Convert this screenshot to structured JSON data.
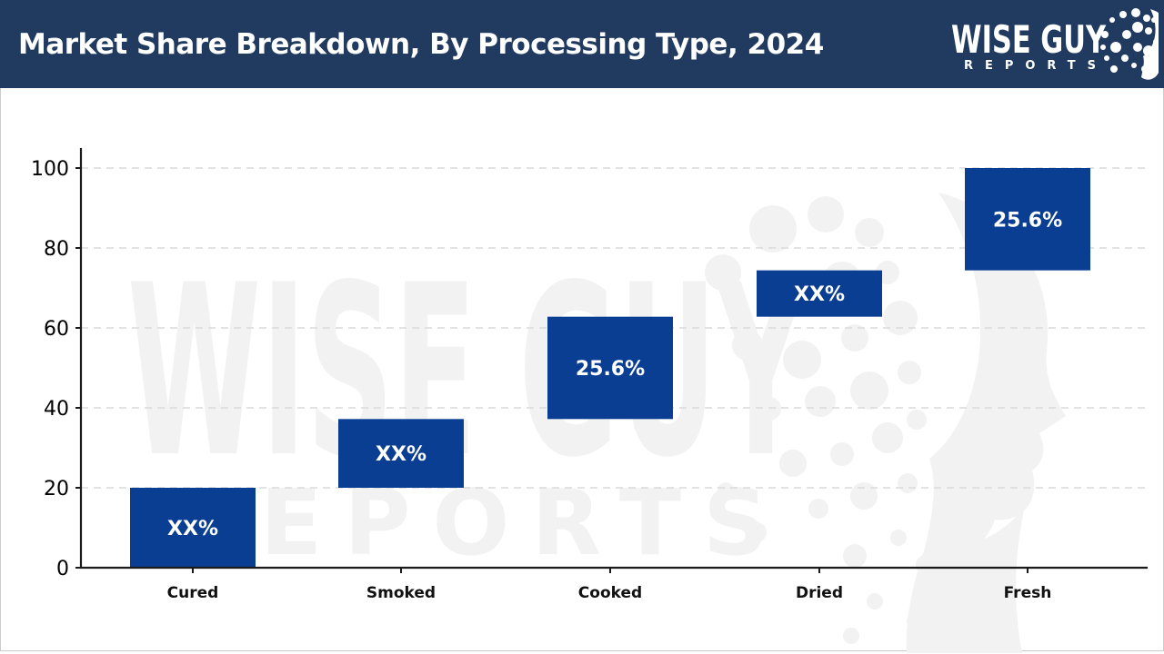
{
  "header": {
    "title": "Market Share Breakdown, By Processing Type, 2024",
    "bg_color": "#213a60",
    "logo": {
      "line1": "WISE GUY",
      "line2": "REPORTS"
    }
  },
  "watermark": {
    "line1": "WISE GUY",
    "line2": "REPORTS"
  },
  "chart_data": {
    "type": "bar",
    "subtype": "waterfall-floating-segments",
    "title": "Market Share Breakdown, By Processing Type, 2024",
    "categories": [
      "Cured",
      "Smoked",
      "Cooked",
      "Dried",
      "Fresh"
    ],
    "segments": [
      {
        "category": "Cured",
        "start": 0,
        "end": 20,
        "height": 20,
        "label": "XX%"
      },
      {
        "category": "Smoked",
        "start": 20,
        "end": 37.2,
        "height": 17.2,
        "label": "XX%"
      },
      {
        "category": "Cooked",
        "start": 37.2,
        "end": 62.8,
        "height": 25.6,
        "label": "25.6%"
      },
      {
        "category": "Dried",
        "start": 62.8,
        "end": 74.4,
        "height": 11.6,
        "label": "XX%"
      },
      {
        "category": "Fresh",
        "start": 74.4,
        "end": 100,
        "height": 25.6,
        "label": "25.6%"
      }
    ],
    "ylim": [
      0,
      100
    ],
    "yticks": [
      0,
      20,
      40,
      60,
      80,
      100
    ],
    "xlabel": "",
    "ylabel": "",
    "grid": "horizontal-dashed",
    "legend": "none",
    "bar_color": "#0a3e92",
    "bar_label_color": "#ffffff",
    "axis_color": "#1a1a1a",
    "gridline_color": "#dadada",
    "tick_label_color": "#000000"
  }
}
